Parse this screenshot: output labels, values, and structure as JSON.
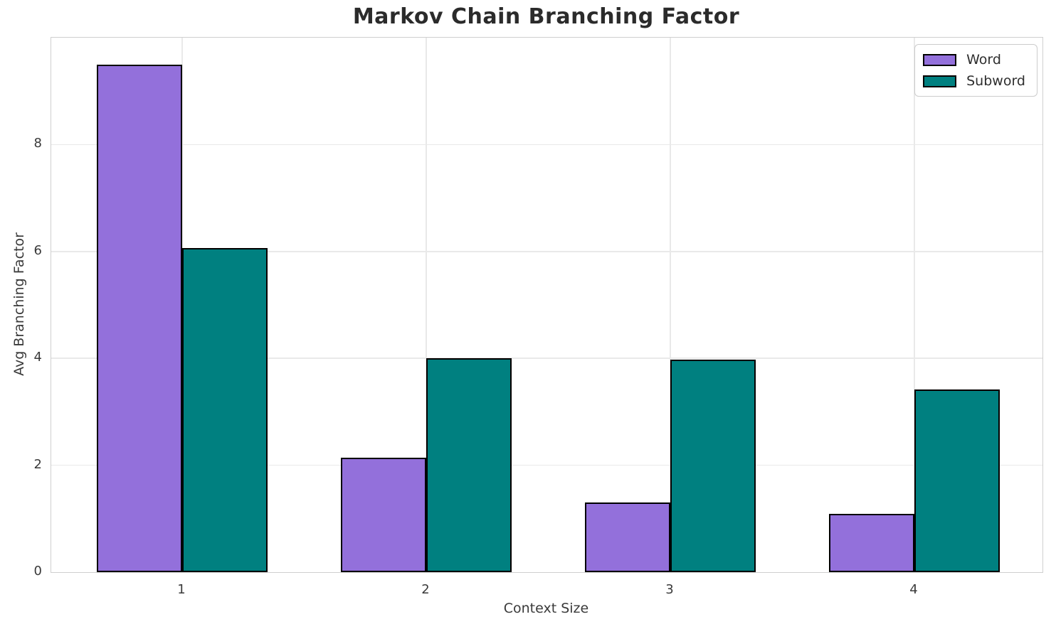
{
  "chart_data": {
    "type": "bar",
    "title": "Markov Chain Branching Factor",
    "xlabel": "Context Size",
    "ylabel": "Avg Branching Factor",
    "categories": [
      "1",
      "2",
      "3",
      "4"
    ],
    "series": [
      {
        "name": "Word",
        "color": "#9370DB",
        "values": [
          9.5,
          2.14,
          1.3,
          1.09
        ]
      },
      {
        "name": "Subword",
        "color": "#008080",
        "values": [
          6.07,
          4.0,
          3.97,
          3.42
        ]
      }
    ],
    "ylim": [
      0,
      10
    ],
    "yticks": [
      0,
      2,
      4,
      6,
      8
    ],
    "grid": true,
    "legend_position": "upper right",
    "bar_edge_color": "#000000",
    "colors": {
      "background": "#ffffff",
      "grid": "#e9e9e9",
      "spine": "#cfcfcf",
      "tick_text": "#3a3a3a",
      "title_text": "#2b2b2b"
    }
  }
}
